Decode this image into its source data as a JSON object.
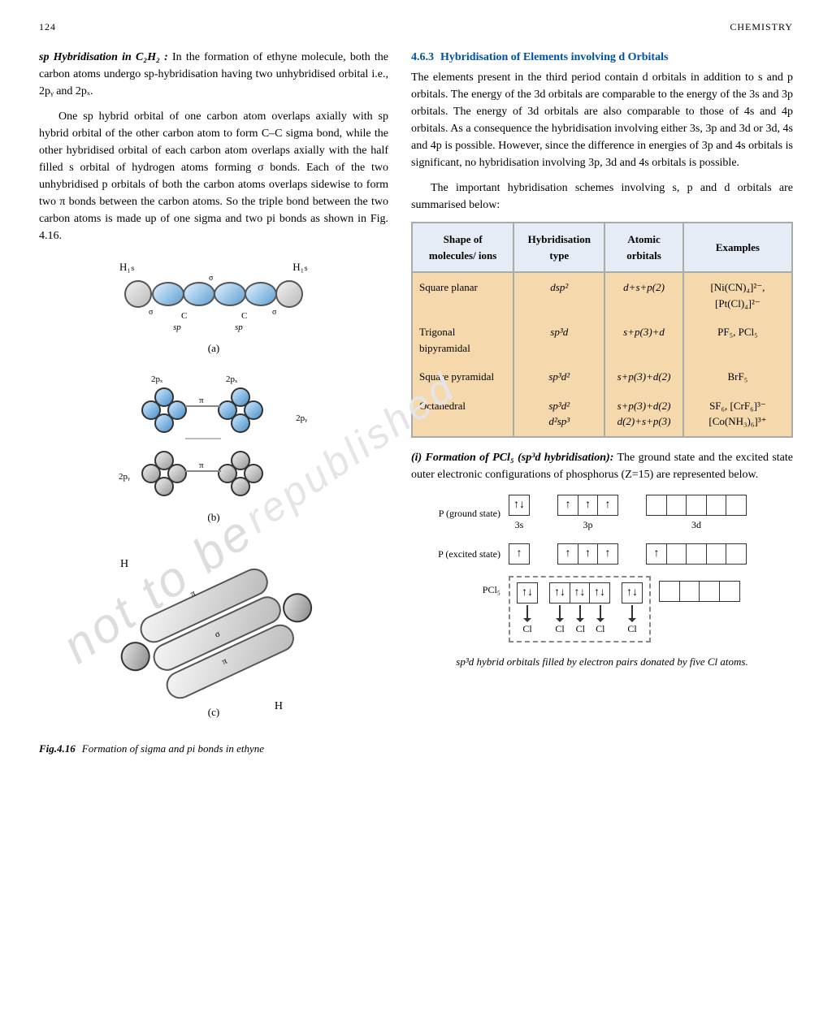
{
  "header": {
    "page_num": "124",
    "subject": "CHEMISTRY"
  },
  "left": {
    "p1_lead": "sp Hybridisation in C₂H₂ :",
    "p1_body": " In the formation of ethyne molecule, both the carbon atoms undergo sp-hybridisation having two unhybridised orbital i.e., 2pᵧ and 2pₓ.",
    "p2": "One sp hybrid orbital of one carbon atom overlaps axially with sp hybrid orbital of the other carbon atom to form C–C sigma bond, while the other hybridised orbital of each carbon atom overlaps axially with the half filled s orbital of hydrogen atoms forming σ bonds. Each of the two unhybridised p orbitals of both the carbon atoms overlaps sidewise to form two π bonds between the carbon atoms. So the triple bond between the two carbon atoms is made up of one sigma and two pi bonds as shown in Fig. 4.16.",
    "fig_a_labels": {
      "h1s_l": "H₁ₛ",
      "h1s_r": "H₁ₛ",
      "c_l": "C",
      "c_r": "C",
      "sp_l": "sp",
      "sp_r": "sp",
      "sigma": "σ",
      "cap": "(a)"
    },
    "fig_b_labels": {
      "px_l": "2pₓ",
      "px_r": "2pₓ",
      "py": "2pᵧ",
      "py2": "2pᵧ",
      "pi": "π",
      "cap": "(b)"
    },
    "fig_c_labels": {
      "h_l": "H",
      "h_r": "H",
      "sigma": "σ",
      "pi": "π",
      "cap": "(c)"
    },
    "fig_caption_lbl": "Fig.4.16",
    "fig_caption_txt": "Formation of sigma and pi bonds in ethyne"
  },
  "right": {
    "section_num": "4.6.3",
    "section_title": "Hybridisation of Elements involving d Orbitals",
    "p1": "The elements present in the third period contain d orbitals in addition to s and p orbitals. The energy of the 3d orbitals are comparable to the energy of the 3s and 3p orbitals. The energy of 3d orbitals are also comparable to those of 4s and 4p orbitals. As a consequence the hybridisation involving either 3s, 3p and 3d or 3d, 4s and 4p is possible. However, since the difference in energies of 3p and 4s orbitals is significant, no hybridisation involving 3p, 3d and 4s orbitals is possible.",
    "p2": "The important hybridisation schemes involving s, p and d orbitals are summarised below:",
    "table": {
      "headers": [
        "Shape of molecules/ ions",
        "Hybridisation type",
        "Atomic orbitals",
        "Examples"
      ],
      "rows": [
        [
          "Square planar",
          "dsp²",
          "d+s+p(2)",
          "[Ni(CN)₄]²⁻, [Pt(Cl)₄]²⁻"
        ],
        [
          "Trigonal bipyramidal",
          "sp³d",
          "s+p(3)+d",
          "PF₅, PCl₅"
        ],
        [
          "Square pyramidal",
          "sp³d²",
          "s+p(3)+d(2)",
          "BrF₅"
        ],
        [
          "Octahedral",
          "sp³d²\nd²sp³",
          "s+p(3)+d(2)\nd(2)+s+p(3)",
          "SF₆, [CrF₆]³⁻ [Co(NH₃)₆]³⁺"
        ]
      ]
    },
    "p3_lead": "(i) Formation of PCl₅ (sp³d hybridisation):",
    "p3_body": " The ground state and the excited state outer electronic configurations of phosphorus (Z=15) are represented below.",
    "econf": {
      "row1_label": "P (ground state)",
      "row2_label": "P (excited state)",
      "row3_label": "PCl₅",
      "s3": "3s",
      "p3": "3p",
      "d3": "3d",
      "updn": "↑↓",
      "up": "↑",
      "cl": "Cl"
    },
    "sub_caption": "sp³d hybrid orbitals filled by electron pairs donated by five Cl atoms."
  },
  "watermark": "not to be",
  "watermark2": "republished"
}
